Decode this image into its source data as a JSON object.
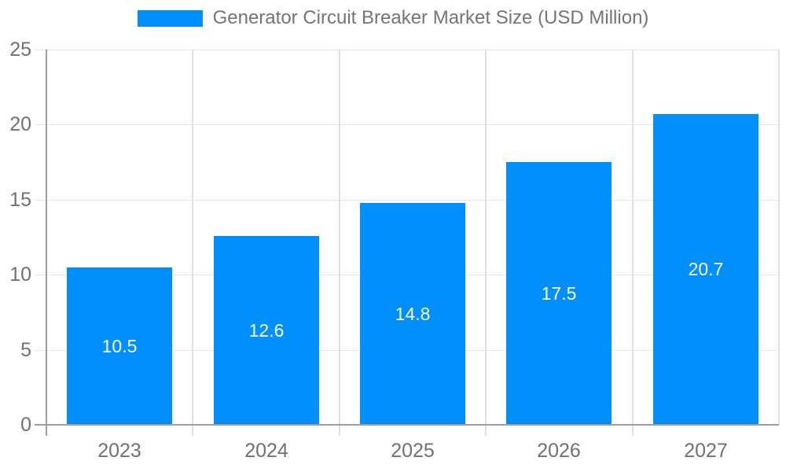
{
  "chart_data": {
    "type": "bar",
    "title": "Generator Circuit Breaker Market Size (USD Million)",
    "categories": [
      "2023",
      "2024",
      "2025",
      "2026",
      "2027"
    ],
    "series": [
      {
        "name": "Generator Circuit Breaker Market Size (USD Million)",
        "values": [
          10.5,
          12.6,
          14.8,
          17.5,
          20.7
        ]
      }
    ],
    "value_labels": [
      "10.5",
      "12.6",
      "14.8",
      "17.5",
      "20.7"
    ],
    "xlabel": "",
    "ylabel": "",
    "ylim": [
      0,
      25
    ],
    "ytick_step": 5,
    "yticks": [
      "0",
      "5",
      "10",
      "15",
      "20",
      "25"
    ],
    "grid": "on",
    "legend_position": "top-center",
    "colors": {
      "bar": "#008FFB",
      "axis_line": "#9e9e9e",
      "grid_horizontal": "#e6e6e6",
      "grid_vertical": "#e0e0e0",
      "tick_label": "#717171",
      "legend_label": "#757575",
      "value_label": "#ffffff",
      "background": "#ffffff"
    }
  }
}
